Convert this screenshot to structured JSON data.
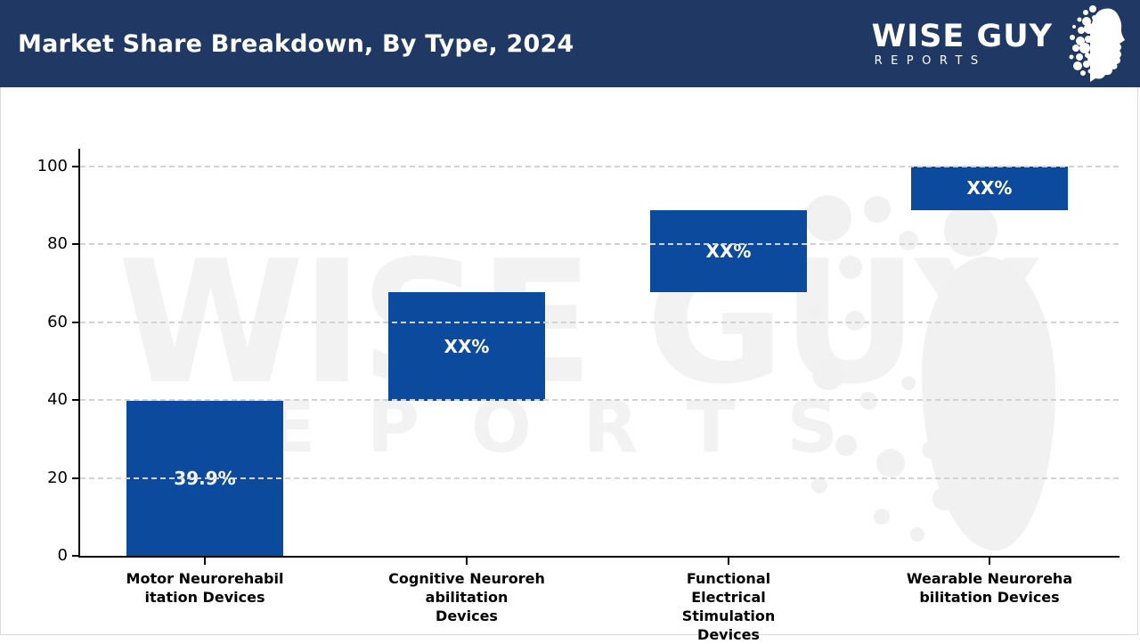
{
  "header": {
    "title": "Market Share Breakdown, By Type, 2024",
    "logo": {
      "name": "WISE GUY",
      "subtitle": "REPORTS"
    }
  },
  "watermark": {
    "line1": "WISE GUY",
    "line2": "REPORTS"
  },
  "colors": {
    "header_bg": "#1f3864",
    "bar": "#0b4a9c",
    "gridline": "#d2d2d2",
    "axis": "#000000",
    "watermark": "#f2f2f2",
    "panel_border": "#d9d9d9",
    "value_label": "#ffffff"
  },
  "chart_data": {
    "type": "bar",
    "subtype": "waterfall",
    "title": "Market Share Breakdown, By Type, 2024",
    "xlabel": "",
    "ylabel": "",
    "ylim": [
      0,
      105
    ],
    "yticks": [
      0,
      20,
      40,
      60,
      80,
      100
    ],
    "grid": "horizontal-dashed",
    "legend": "none",
    "categories": [
      {
        "name": "Motor Neurorehabilitation Devices",
        "lines": [
          "Motor Neurorehabil",
          "itation Devices"
        ]
      },
      {
        "name": "Cognitive Neurorehabilitation Devices",
        "lines": [
          "Cognitive Neuroreh",
          "abilitation",
          "Devices"
        ]
      },
      {
        "name": "Functional Electrical Stimulation Devices",
        "lines": [
          "Functional",
          "Electrical",
          "Stimulation",
          "Devices"
        ]
      },
      {
        "name": "Wearable Neurorehabilitation Devices",
        "lines": [
          "Wearable Neuroreha",
          "bilitation Devices"
        ]
      }
    ],
    "segments": [
      {
        "start": 0,
        "end": 39.9,
        "label": "39.9%"
      },
      {
        "start": 39.9,
        "end": 67.7,
        "label": "XX%"
      },
      {
        "start": 67.7,
        "end": 88.8,
        "label": "XX%"
      },
      {
        "start": 88.8,
        "end": 100,
        "label": "XX%"
      }
    ]
  }
}
